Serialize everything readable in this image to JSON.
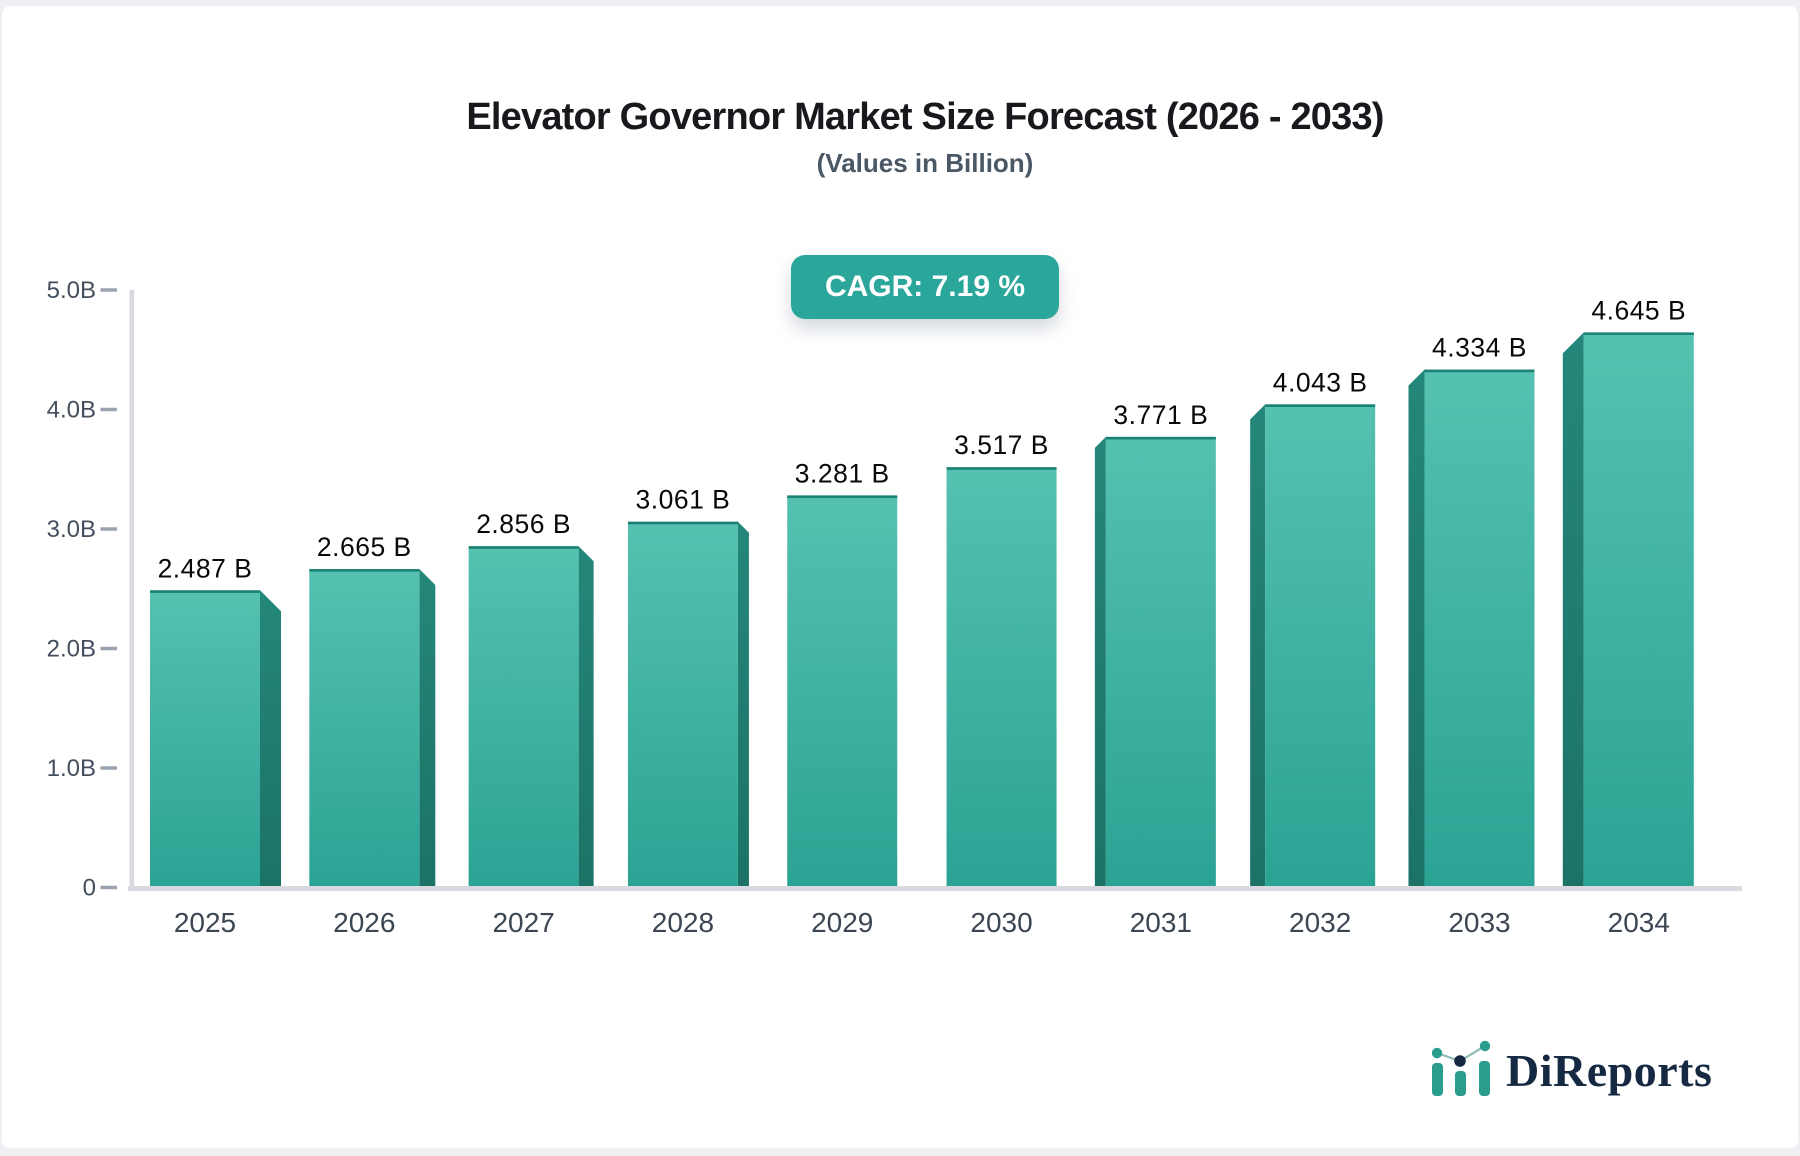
{
  "chart_data": {
    "type": "bar",
    "title": "Elevator Governor Market Size Forecast (2026 - 2033)",
    "subtitle": "(Values in Billion)",
    "cagr_badge": "CAGR: 7.19 %",
    "categories": [
      "2025",
      "2026",
      "2027",
      "2028",
      "2029",
      "2030",
      "2031",
      "2032",
      "2033",
      "2034"
    ],
    "values": [
      2.487,
      2.665,
      2.856,
      3.061,
      3.281,
      3.517,
      3.771,
      4.043,
      4.334,
      4.645
    ],
    "value_labels": [
      "2.487 B",
      "2.665 B",
      "2.856 B",
      "3.061 B",
      "3.281 B",
      "3.517 B",
      "3.771 B",
      "4.043 B",
      "4.334 B",
      "4.645 B"
    ],
    "xlabel": "",
    "ylabel": "",
    "ylim": [
      0,
      5
    ],
    "y_axis": {
      "ticks": [
        "5.0B",
        "4.0B",
        "3.0B",
        "2.0B",
        "1.0B",
        "0"
      ],
      "tick_values": [
        5,
        4,
        3,
        2,
        1,
        0
      ]
    },
    "grid": false,
    "legend": "none",
    "colors": {
      "accent": "#2aa69a",
      "bar_face_top": "#55c1b1",
      "bar_face_bottom": "#2ba394",
      "bar_side_top": "#24877a",
      "bar_side_bottom": "#1c7266",
      "bar_top_edge": "#1c8274",
      "axis_line": "#d8dadf",
      "tick_dash": "#9aa3af",
      "tick_text": "#444f5e",
      "year_text": "#3c4653",
      "value_text": "#08090b"
    }
  },
  "brand": {
    "name": "DiReports"
  }
}
